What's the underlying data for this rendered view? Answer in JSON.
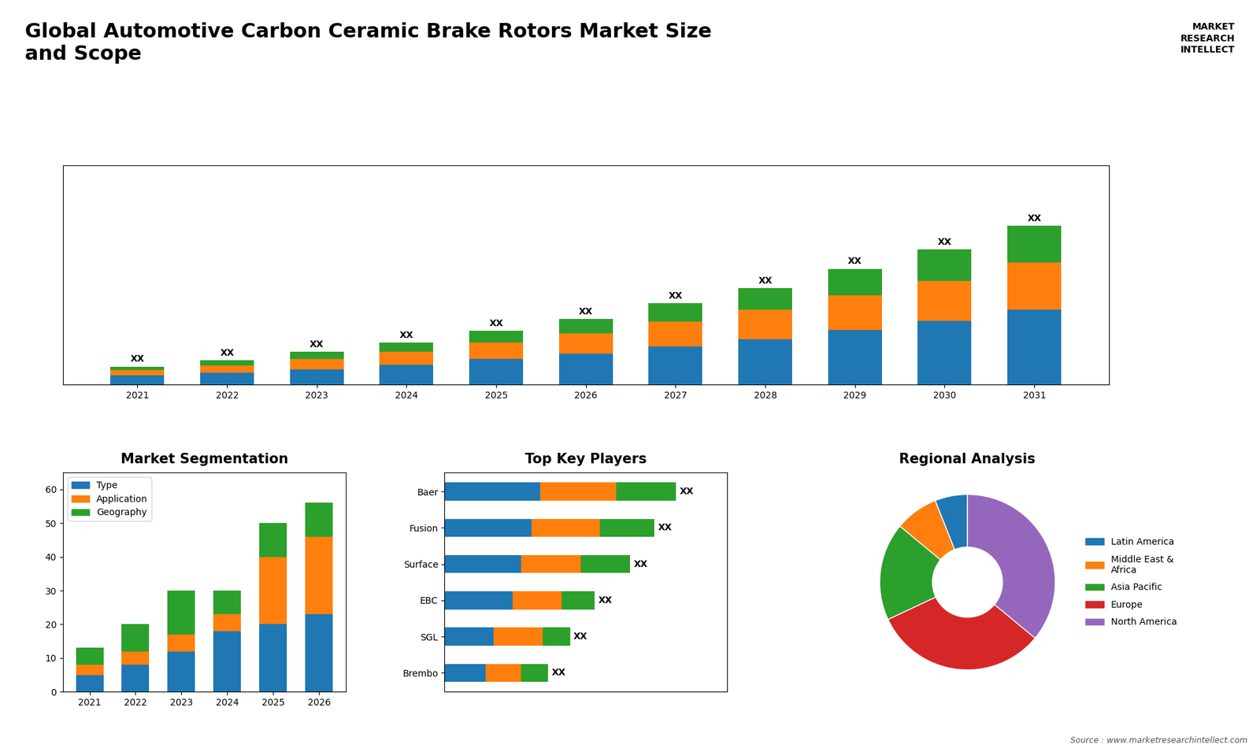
{
  "title": "Global Automotive Carbon Ceramic Brake Rotors Market Size\nand Scope",
  "annotations": [
    "Source : www.marketresearchintellect.com",
    "MARKET\nRESEARCH\nINTELLECT"
  ],
  "chart_data": [
    {
      "type": "bar",
      "stacked": true,
      "categories": [
        "2021",
        "2022",
        "2023",
        "2024",
        "2025",
        "2026",
        "2027",
        "2028",
        "2029",
        "2030",
        "2031"
      ],
      "series": [
        {
          "values": [
            0.5,
            0.65,
            0.85,
            1.1,
            1.4,
            1.7,
            2.1,
            2.5,
            3.0,
            3.5,
            4.1
          ]
        },
        {
          "values": [
            0.3,
            0.4,
            0.55,
            0.7,
            0.9,
            1.1,
            1.35,
            1.6,
            1.9,
            2.2,
            2.6
          ]
        },
        {
          "values": [
            0.2,
            0.3,
            0.4,
            0.5,
            0.65,
            0.8,
            1.0,
            1.2,
            1.45,
            1.7,
            2.0
          ]
        }
      ],
      "ylim": [
        0,
        12.006
      ],
      "yticks": [],
      "tick_labels": "x",
      "data_labels": true,
      "value_labels": [
        "XX",
        "XX",
        "XX",
        "XX",
        "XX",
        "XX",
        "XX",
        "XX",
        "XX",
        "XX",
        "XX"
      ]
    },
    {
      "type": "bar",
      "stacked": true,
      "title": "Market Segmentation",
      "categories": [
        "2021",
        "2022",
        "2023",
        "2024",
        "2025",
        "2026"
      ],
      "series": [
        {
          "name": "Type",
          "values": [
            5,
            8,
            12,
            18,
            20,
            23
          ]
        },
        {
          "name": "Application",
          "values": [
            3,
            4,
            5,
            5,
            20,
            23
          ]
        },
        {
          "name": "Geography",
          "values": [
            5,
            8,
            13,
            7,
            10,
            10
          ]
        }
      ],
      "ylim": [
        0,
        65
      ],
      "yticks": [
        0,
        10,
        20,
        30,
        40,
        50,
        60
      ],
      "legend": "upper left"
    },
    {
      "type": "bar",
      "orientation": "horizontal",
      "stacked": true,
      "title": "Top Key Players",
      "categories": [
        "Baer",
        "Fusion",
        "Surface",
        "EBC",
        "SGL",
        "Brembo"
      ],
      "series": [
        {
          "values": [
            0.35,
            0.32,
            0.28,
            0.25,
            0.18,
            0.15
          ]
        },
        {
          "values": [
            0.28,
            0.25,
            0.22,
            0.18,
            0.18,
            0.13
          ]
        },
        {
          "values": [
            0.22,
            0.2,
            0.18,
            0.12,
            0.1,
            0.1
          ]
        }
      ],
      "xlim": [
        0,
        1.037
      ],
      "xticks": [],
      "tick_labels": "y",
      "data_labels": true,
      "value_labels": [
        "XX",
        "XX",
        "XX",
        "XX",
        "XX",
        "XX"
      ]
    },
    {
      "type": "pie",
      "title": "Regional Analysis",
      "categories": [
        "Latin America",
        "Middle East &\nAfrica",
        "Asia Pacific",
        "Europe",
        "North America"
      ],
      "values": [
        6,
        8,
        18,
        32,
        36
      ],
      "legend": "center left"
    }
  ]
}
